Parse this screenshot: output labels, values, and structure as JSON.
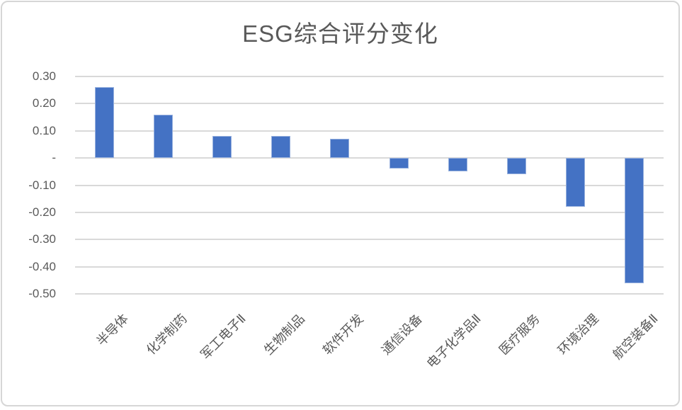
{
  "chart_data": {
    "type": "bar",
    "title": "ESG综合评分变化",
    "categories": [
      "半导体",
      "化学制药",
      "军工电子Ⅱ",
      "生物制品",
      "软件开发",
      "通信设备",
      "电子化学品Ⅱ",
      "医疗服务",
      "环境治理",
      "航空装备Ⅱ"
    ],
    "values": [
      0.26,
      0.16,
      0.08,
      0.08,
      0.07,
      -0.04,
      -0.05,
      -0.06,
      -0.18,
      -0.46
    ],
    "xlabel": "",
    "ylabel": "",
    "ylim": [
      -0.5,
      0.3
    ],
    "y_tick_step": 0.1,
    "y_tick_labels_top_to_bottom": [
      "0.30",
      "0.20",
      "0.10",
      "-",
      "-0.10",
      "-0.20",
      "-0.30",
      "-0.40",
      "-0.50"
    ],
    "grid": "horizontal",
    "legend_position": "none",
    "x_label_rotation_deg": 45,
    "colors": {
      "bar": "#4472c4",
      "gridline": "#d9d9d9",
      "text": "#595959",
      "frame_border": "#d6d6d6",
      "background": "#ffffff"
    }
  }
}
